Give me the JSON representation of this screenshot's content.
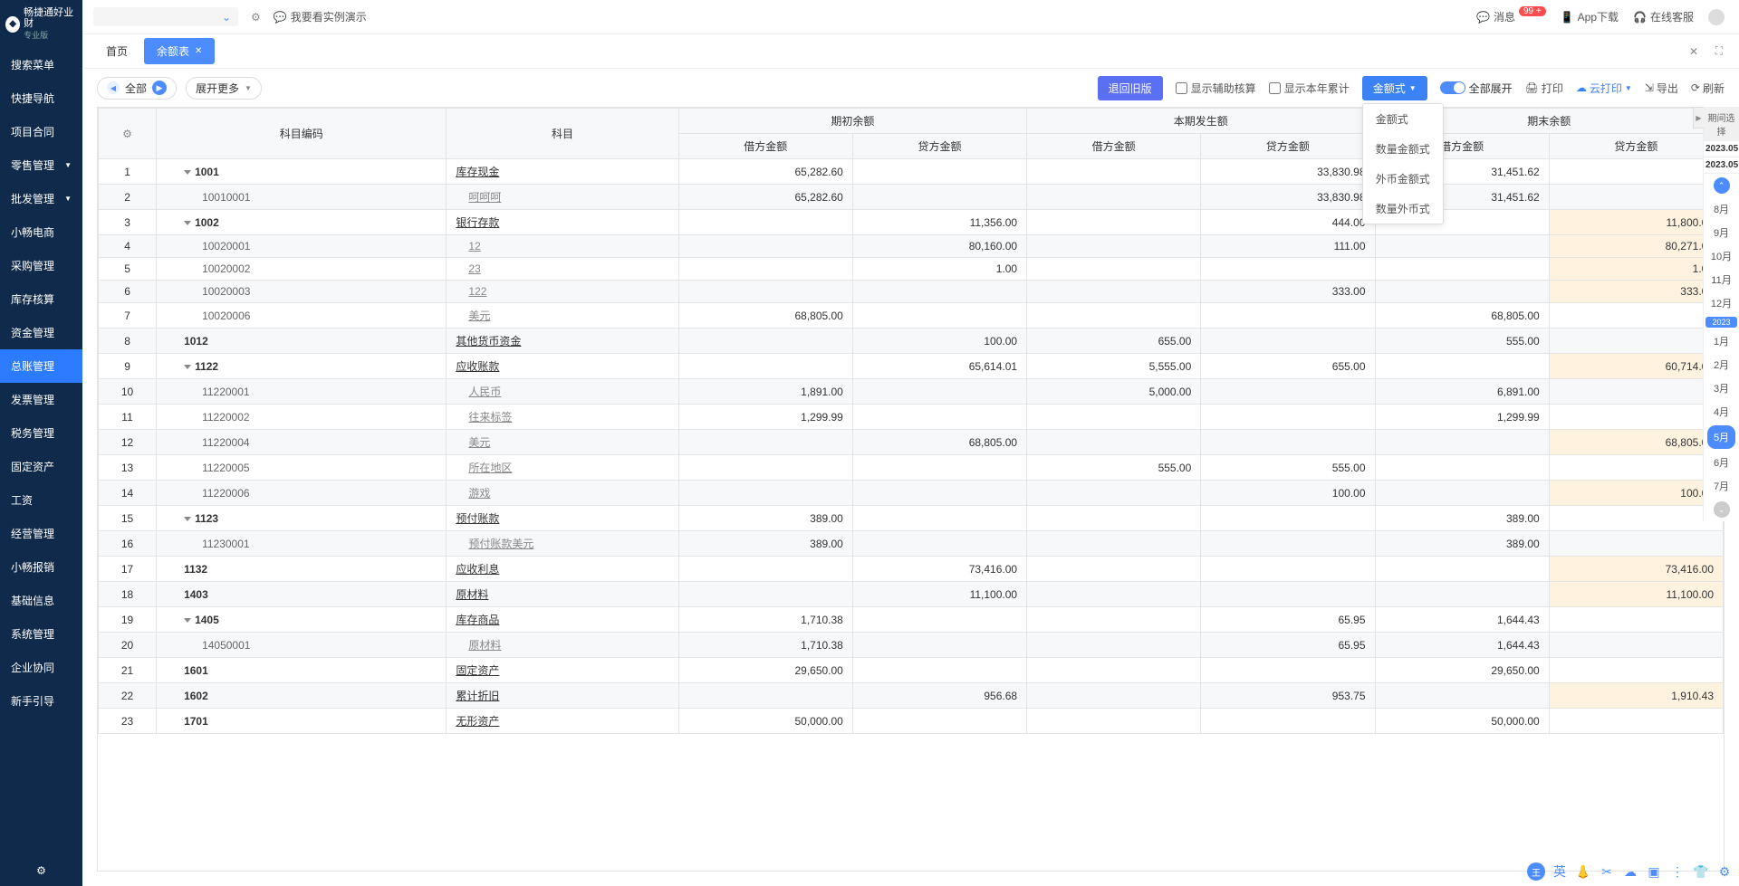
{
  "brand": {
    "name": "畅捷通好业财",
    "edition": "专业版"
  },
  "topbar": {
    "org_placeholder": "　　　　　　",
    "demo_link": "我要看实例演示",
    "msg": "消息",
    "msg_badge": "99 +",
    "download": "App下载",
    "support": "在线客服",
    "user": ""
  },
  "nav": [
    {
      "label": "搜索菜单",
      "active": false,
      "caret": false
    },
    {
      "label": "快捷导航",
      "active": false,
      "caret": false
    },
    {
      "label": "项目合同",
      "active": false,
      "caret": false
    },
    {
      "label": "零售管理",
      "active": false,
      "caret": true
    },
    {
      "label": "批发管理",
      "active": false,
      "caret": true
    },
    {
      "label": "小畅电商",
      "active": false,
      "caret": false
    },
    {
      "label": "采购管理",
      "active": false,
      "caret": false
    },
    {
      "label": "库存核算",
      "active": false,
      "caret": false
    },
    {
      "label": "资金管理",
      "active": false,
      "caret": false
    },
    {
      "label": "总账管理",
      "active": true,
      "caret": false
    },
    {
      "label": "发票管理",
      "active": false,
      "caret": false
    },
    {
      "label": "税务管理",
      "active": false,
      "caret": false
    },
    {
      "label": "固定资产",
      "active": false,
      "caret": false
    },
    {
      "label": "工资",
      "active": false,
      "caret": false
    },
    {
      "label": "经营管理",
      "active": false,
      "caret": false
    },
    {
      "label": "小畅报销",
      "active": false,
      "caret": false
    },
    {
      "label": "基础信息",
      "active": false,
      "caret": false
    },
    {
      "label": "系统管理",
      "active": false,
      "caret": false
    },
    {
      "label": "企业协同",
      "active": false,
      "caret": false
    },
    {
      "label": "新手引导",
      "active": false,
      "caret": false
    }
  ],
  "tabs": {
    "home": "首页",
    "balance": "余额表"
  },
  "toolbar": {
    "filter_all": "全部",
    "expand_more": "展开更多",
    "back_old": "退回旧版",
    "show_aux": "显示辅助核算",
    "show_year": "显示本年累计",
    "amount_mode": "金额式",
    "expand_all": "全部展开",
    "print": "打印",
    "cloud_print": "云打印",
    "export": "导出",
    "refresh": "刷新"
  },
  "dropdown": [
    "金额式",
    "数量金额式",
    "外币金额式",
    "数量外币式"
  ],
  "table": {
    "headers": {
      "code": "科目编码",
      "subject": "科目",
      "begin": "期初余额",
      "period": "本期发生额",
      "end": "期末余额",
      "debit": "借方金额",
      "credit": "贷方金额"
    },
    "rows": [
      {
        "n": 1,
        "code": "1001",
        "subject": "库存现金",
        "exp": true,
        "bd": "65,282.60",
        "bc": "",
        "pd": "",
        "pc": "33,830.98",
        "ed": "31,451.62",
        "ec": ""
      },
      {
        "n": 2,
        "code": "10010001",
        "subject": "呵呵呵",
        "indent": true,
        "bd": "65,282.60",
        "bc": "",
        "pd": "",
        "pc": "33,830.98",
        "ed": "31,451.62",
        "ec": ""
      },
      {
        "n": 3,
        "code": "1002",
        "subject": "银行存款",
        "exp": true,
        "bd": "",
        "bc": "11,356.00",
        "pd": "",
        "pc": "444.00",
        "ed": "",
        "ec": "11,800.00",
        "hl": true
      },
      {
        "n": 4,
        "code": "10020001",
        "subject": "12",
        "indent": true,
        "bd": "",
        "bc": "80,160.00",
        "pd": "",
        "pc": "111.00",
        "ed": "",
        "ec": "80,271.00",
        "hl": true
      },
      {
        "n": 5,
        "code": "10020002",
        "subject": "23",
        "indent": true,
        "bd": "",
        "bc": "1.00",
        "pd": "",
        "pc": "",
        "ed": "",
        "ec": "1.00",
        "hl": true
      },
      {
        "n": 6,
        "code": "10020003",
        "subject": "122",
        "indent": true,
        "bd": "",
        "bc": "",
        "pd": "",
        "pc": "333.00",
        "ed": "",
        "ec": "333.00",
        "hl": true
      },
      {
        "n": 7,
        "code": "10020006",
        "subject": "美元",
        "indent": true,
        "bd": "68,805.00",
        "bc": "",
        "pd": "",
        "pc": "",
        "ed": "68,805.00",
        "ec": ""
      },
      {
        "n": 8,
        "code": "1012",
        "subject": "其他货币资金",
        "bd": "",
        "bc": "100.00",
        "pd": "655.00",
        "pc": "",
        "ed": "555.00",
        "ec": ""
      },
      {
        "n": 9,
        "code": "1122",
        "subject": "应收账款",
        "exp": true,
        "bd": "",
        "bc": "65,614.01",
        "pd": "5,555.00",
        "pc": "655.00",
        "ed": "",
        "ec": "60,714.01",
        "hl": true
      },
      {
        "n": 10,
        "code": "11220001",
        "subject": "人民币",
        "indent": true,
        "bd": "1,891.00",
        "bc": "",
        "pd": "5,000.00",
        "pc": "",
        "ed": "6,891.00",
        "ec": ""
      },
      {
        "n": 11,
        "code": "11220002",
        "subject": "往来标签",
        "indent": true,
        "bd": "1,299.99",
        "bc": "",
        "pd": "",
        "pc": "",
        "ed": "1,299.99",
        "ec": ""
      },
      {
        "n": 12,
        "code": "11220004",
        "subject": "美元",
        "indent": true,
        "bd": "",
        "bc": "68,805.00",
        "pd": "",
        "pc": "",
        "ed": "",
        "ec": "68,805.00",
        "hl": true
      },
      {
        "n": 13,
        "code": "11220005",
        "subject": "所在地区",
        "indent": true,
        "bd": "",
        "bc": "",
        "pd": "555.00",
        "pc": "555.00",
        "ed": "",
        "ec": ""
      },
      {
        "n": 14,
        "code": "11220006",
        "subject": "游戏",
        "indent": true,
        "bd": "",
        "bc": "",
        "pd": "",
        "pc": "100.00",
        "ed": "",
        "ec": "100.00",
        "hl": true
      },
      {
        "n": 15,
        "code": "1123",
        "subject": "预付账款",
        "exp": true,
        "bd": "389.00",
        "bc": "",
        "pd": "",
        "pc": "",
        "ed": "389.00",
        "ec": ""
      },
      {
        "n": 16,
        "code": "11230001",
        "subject": "预付账款美元",
        "indent": true,
        "bd": "389.00",
        "bc": "",
        "pd": "",
        "pc": "",
        "ed": "389.00",
        "ec": ""
      },
      {
        "n": 17,
        "code": "1132",
        "subject": "应收利息",
        "bd": "",
        "bc": "73,416.00",
        "pd": "",
        "pc": "",
        "ed": "",
        "ec": "73,416.00",
        "hl": true
      },
      {
        "n": 18,
        "code": "1403",
        "subject": "原材料",
        "bd": "",
        "bc": "11,100.00",
        "pd": "",
        "pc": "",
        "ed": "",
        "ec": "11,100.00",
        "hl": true
      },
      {
        "n": 19,
        "code": "1405",
        "subject": "库存商品",
        "exp": true,
        "bd": "1,710.38",
        "bc": "",
        "pd": "",
        "pc": "65.95",
        "ed": "1,644.43",
        "ec": ""
      },
      {
        "n": 20,
        "code": "14050001",
        "subject": "原材料",
        "indent": true,
        "bd": "1,710.38",
        "bc": "",
        "pd": "",
        "pc": "65.95",
        "ed": "1,644.43",
        "ec": ""
      },
      {
        "n": 21,
        "code": "1601",
        "subject": "固定资产",
        "bd": "29,650.00",
        "bc": "",
        "pd": "",
        "pc": "",
        "ed": "29,650.00",
        "ec": ""
      },
      {
        "n": 22,
        "code": "1602",
        "subject": "累计折旧",
        "bd": "",
        "bc": "956.68",
        "pd": "",
        "pc": "953.75",
        "ed": "",
        "ec": "1,910.43",
        "hl": true
      },
      {
        "n": 23,
        "code": "1701",
        "subject": "无形资产",
        "bd": "50,000.00",
        "bc": "",
        "pd": "",
        "pc": "",
        "ed": "50,000.00",
        "ec": ""
      }
    ]
  },
  "date_panel": {
    "header": "期间选择",
    "from": "2023.05",
    "to": "2023.05",
    "months_top": [
      "8月",
      "9月",
      "10月",
      "11月",
      "12月"
    ],
    "year": "2023",
    "months_bottom": [
      "1月",
      "2月",
      "3月",
      "4月",
      "5月",
      "6月",
      "7月"
    ],
    "active_month": "5月"
  }
}
